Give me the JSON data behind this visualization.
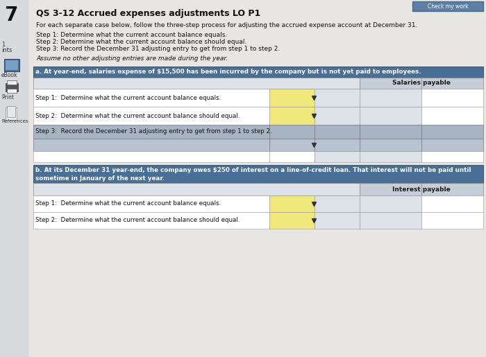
{
  "page_num": "7",
  "title": "QS 3-12 Accrued expenses adjustments LO P1",
  "intro_line": "For each separate case below, follow the three-step process for adjusting the accrued expense account at December 31.",
  "step1": "Step 1: Determine what the current account balance equals.",
  "step2": "Step 2: Determine what the current account balance should equal.",
  "step3": "Step 3: Record the December 31 adjusting entry to get from step 1 to step 2.",
  "italic_note": "Assume no other adjusting entries are made during the year.",
  "check_button_text": "Check my work",
  "section_a_header": "a. At year-end, salaries expense of $15,500 has been incurred by the company but is not yet paid to employees.",
  "section_a_col_header": "Salaries payable",
  "section_a_step1": "Step 1:  Determine what the current account balance equals.",
  "section_a_step2": "Step 2:  Determine what the current account balance should equal.",
  "section_a_step3": "Step 3:  Record the December 31 adjusting entry to get from step 1 to step 2.",
  "section_b_header1": "b. At its December 31 year-end, the company owes $250 of interest on a line-of-credit loan. That interest will not be paid until",
  "section_b_header2": "sometime in January of the next year.",
  "section_b_col_header": "Interest payable",
  "section_b_step1": "Step 1:  Determine what the current account balance equals.",
  "section_b_step2": "Step 2:  Determine what the current account balance should equal.",
  "bg_color": "#e8e6e3",
  "header_bg": "#4a6f96",
  "header_text_color": "#ffffff",
  "col_header_bg": "#c5cdd8",
  "col_header_text": "#1a1a1a",
  "row_bg_even": "#dde2e8",
  "row_bg_white": "#f5f5f5",
  "row_bg_pure_white": "#ffffff",
  "yellow_cell": "#f0e87a",
  "step3_bg": "#a8b4c4",
  "step3_blank_bg": "#b8c2d0",
  "table_border": "#888888",
  "sidebar_bg": "#d8dade",
  "check_btn_bg": "#5b7fa6",
  "check_btn_border": "#4a6a8c"
}
